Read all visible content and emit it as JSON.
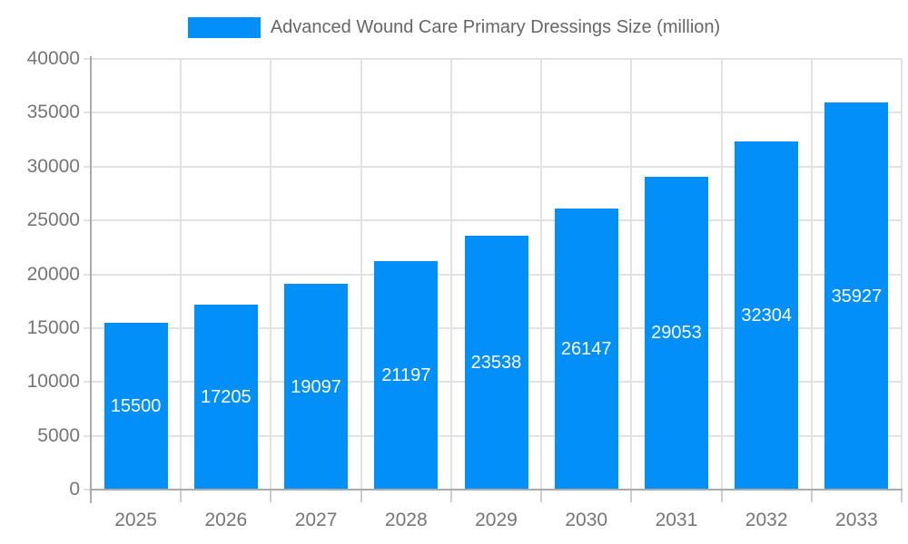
{
  "legend": {
    "label": "Advanced Wound Care Primary Dressings Size (million)"
  },
  "chart_data": {
    "type": "bar",
    "title": "Advanced Wound Care Primary Dressings Size (million)",
    "categories": [
      "2025",
      "2026",
      "2027",
      "2028",
      "2029",
      "2030",
      "2031",
      "2032",
      "2033"
    ],
    "values": [
      15500,
      17205,
      19097,
      21197,
      23538,
      26147,
      29053,
      32304,
      35927
    ],
    "xlabel": "",
    "ylabel": "",
    "ylim": [
      0,
      40000
    ],
    "yticks": [
      0,
      5000,
      10000,
      15000,
      20000,
      25000,
      30000,
      35000,
      40000
    ],
    "grid": true,
    "legend_position": "top",
    "bar_labels_inside": true
  },
  "colors": {
    "bar": "#0290F8",
    "bar_label": "#ffffff",
    "grid": "#e2e2e2",
    "axis": "#aaaaaa",
    "bottom_tick": "#cccccc",
    "tick_label": "#757575",
    "legend_text": "#666666",
    "background": "#ffffff"
  }
}
